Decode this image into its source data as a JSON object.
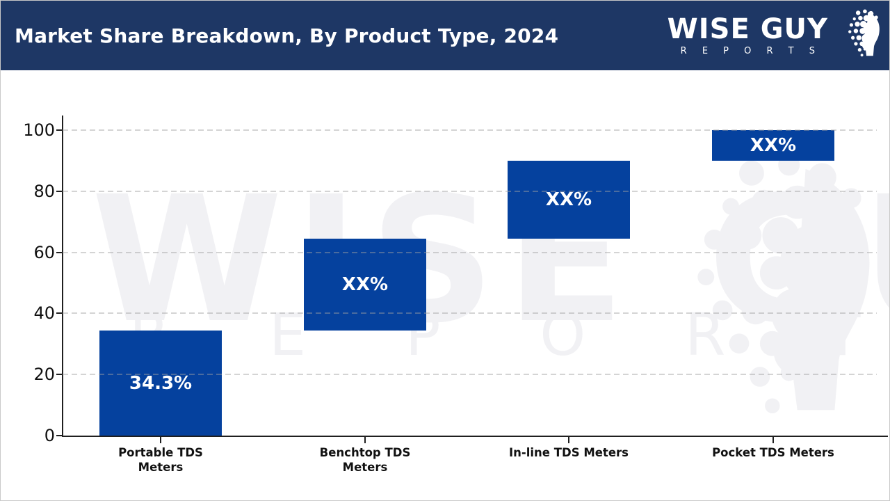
{
  "header": {
    "title": "Market Share Breakdown, By Product Type, 2024",
    "logo": {
      "wordmark": "WISE GUY",
      "sub": "R E P O R T S"
    }
  },
  "watermark": {
    "wordmark": "WISE GUY",
    "sub": "R E P O R T S"
  },
  "colors": {
    "header_bg": "#1e3765",
    "bar": "#05419e",
    "bar_label": "#ffffff",
    "axis": "#1f1f1f",
    "tick_label": "#111111",
    "gridline": "rgba(160,160,160,0.45)",
    "watermark": "#f1f1f4",
    "logo_text": "#ffffff"
  },
  "chart_data": {
    "type": "waterfall",
    "title": "Market Share Breakdown, By Product Type, 2024",
    "categories": [
      [
        "Portable TDS",
        "Meters"
      ],
      [
        "Benchtop TDS",
        "Meters"
      ],
      [
        "In-line TDS Meters"
      ],
      [
        "Pocket TDS Meters"
      ]
    ],
    "segments": [
      {
        "label": "34.3%",
        "start": 0,
        "end": 34.3
      },
      {
        "label": "XX%",
        "start": 34.3,
        "end": 64.5
      },
      {
        "label": "XX%",
        "start": 64.5,
        "end": 90
      },
      {
        "label": "XX%",
        "start": 90,
        "end": 100
      }
    ],
    "yticks": [
      0,
      20,
      40,
      60,
      80,
      100
    ],
    "ylim": [
      0,
      104.8
    ],
    "xlabel": "",
    "ylabel": "",
    "grid": "horizontal-dashed",
    "legend": "none"
  }
}
